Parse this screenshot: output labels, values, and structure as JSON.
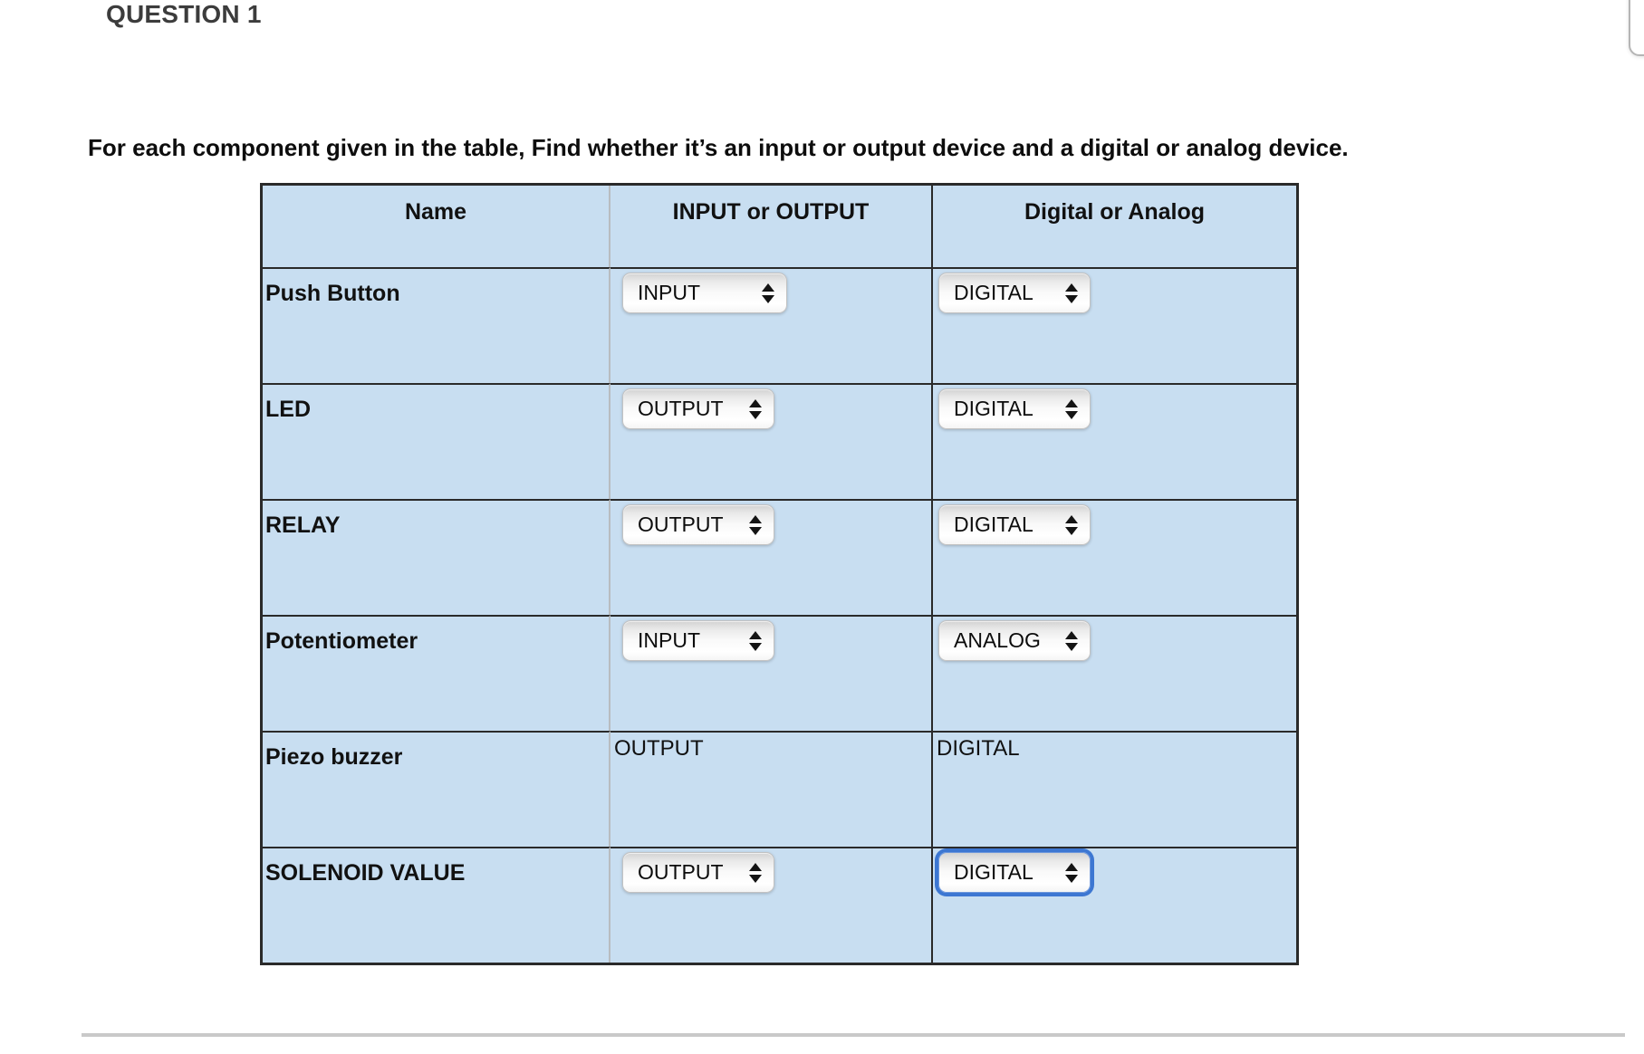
{
  "page": {
    "question_label": "QUESTION 1",
    "instruction": "For each component given in the table, Find whether it’s an input or output device and a digital or analog device."
  },
  "table": {
    "headers": [
      "Name",
      "INPUT or OUTPUT",
      "Digital or Analog"
    ],
    "rows": [
      {
        "name": "Push Button",
        "io": {
          "value": "INPUT",
          "control": "select"
        },
        "da": {
          "value": "DIGITAL",
          "control": "select"
        }
      },
      {
        "name": "LED",
        "io": {
          "value": "OUTPUT",
          "control": "select"
        },
        "da": {
          "value": "DIGITAL",
          "control": "select"
        }
      },
      {
        "name": "RELAY",
        "io": {
          "value": "OUTPUT",
          "control": "select"
        },
        "da": {
          "value": "DIGITAL",
          "control": "select"
        }
      },
      {
        "name": "Potentiometer",
        "io": {
          "value": "INPUT",
          "control": "select"
        },
        "da": {
          "value": "ANALOG",
          "control": "select"
        }
      },
      {
        "name": "Piezo buzzer",
        "io": {
          "value": "OUTPUT",
          "control": "text"
        },
        "da": {
          "value": "DIGITAL",
          "control": "text"
        }
      },
      {
        "name": "SOLENOID VALUE",
        "io": {
          "value": "OUTPUT",
          "control": "select"
        },
        "da": {
          "value": "DIGITAL",
          "control": "select",
          "focused": true
        }
      }
    ]
  },
  "colors": {
    "cell_background": "#c8def1",
    "table_border": "#2a2a2a",
    "light_divider": "#b8bcc0",
    "focus_ring": "#3d77d2"
  }
}
